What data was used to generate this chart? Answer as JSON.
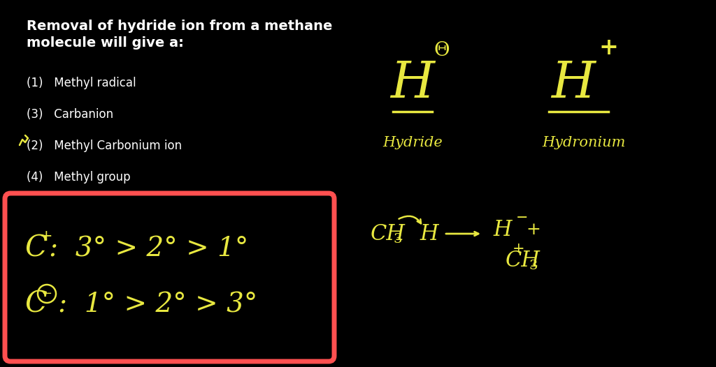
{
  "bg_color": "#000000",
  "title_text_line1": "Removal of hydride ion from a methane",
  "title_text_line2": "molecule will give a:",
  "title_color": "#ffffff",
  "title_fontsize": 14,
  "title_fontweight": "bold",
  "options": [
    "(1)   Methyl radical",
    "(3)   Carbanion",
    "(2)   Methyl Carbonium ion",
    "(4)   Methyl group"
  ],
  "options_color": "#ffffff",
  "options_fontsize": 12,
  "yellow_color": "#e8e840",
  "red_color": "#ff5050",
  "fig_w": 10.24,
  "fig_h": 5.26,
  "dpi": 100
}
